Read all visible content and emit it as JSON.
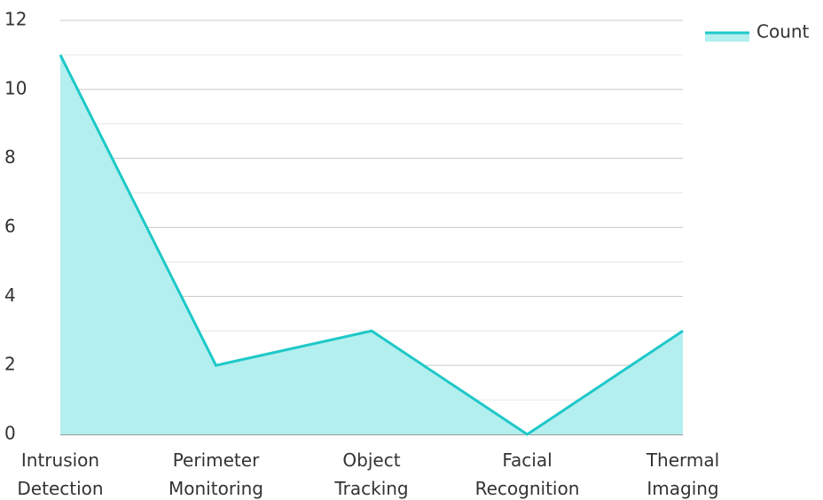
{
  "chart_data": {
    "type": "area",
    "categories": [
      "Intrusion Detection",
      "Perimeter Monitoring",
      "Object Tracking",
      "Facial Recognition",
      "Thermal Imaging"
    ],
    "series": [
      {
        "name": "Count",
        "color": "#1ec8c8",
        "fill": "#b3efef",
        "values": [
          11,
          2,
          3,
          0,
          3
        ]
      }
    ],
    "ylim": [
      0,
      12
    ],
    "yticks": [
      0,
      2,
      4,
      6,
      8,
      10,
      12
    ],
    "minor_grid": [
      1,
      3,
      5,
      7,
      9,
      11
    ],
    "grid": true,
    "legend": "top-right"
  }
}
